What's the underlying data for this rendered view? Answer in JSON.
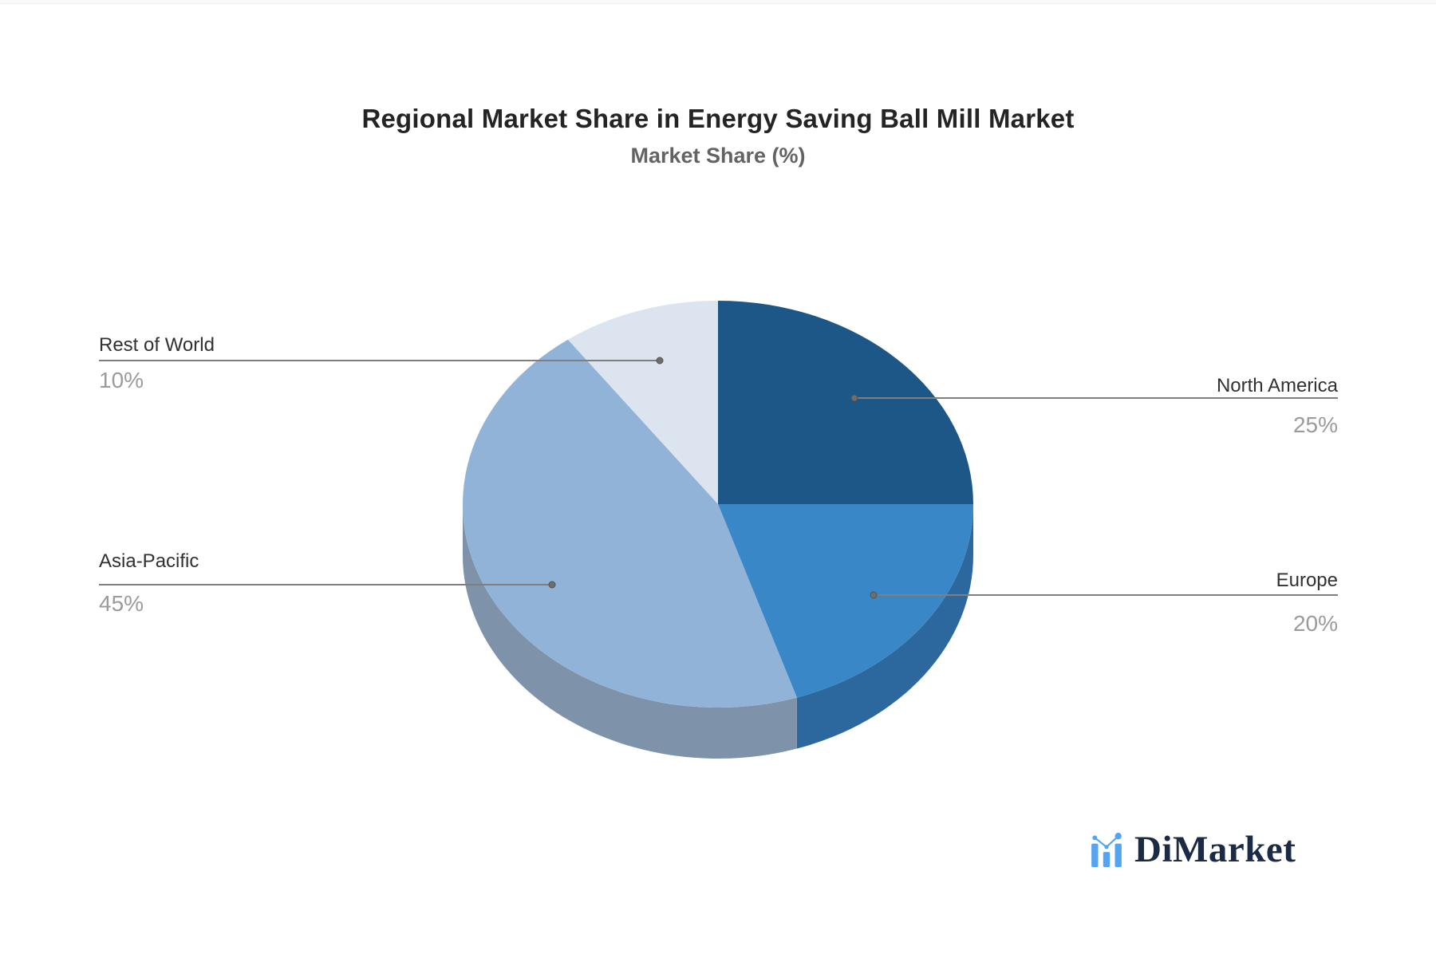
{
  "chart_data": {
    "type": "pie",
    "title": "Regional Market Share in Energy Saving Ball Mill Market",
    "subtitle": "Market Share (%)",
    "unit": "%",
    "style": "3d-pie",
    "legend_position": "none",
    "label_style": "callout-lines-with-percent",
    "start_angle_deg": 0,
    "direction": "clockwise",
    "slices": [
      {
        "name": "North America",
        "value": 25,
        "pct_label": "25%",
        "color": "#1d5788",
        "side_color": "#164268"
      },
      {
        "name": "Europe",
        "value": 20,
        "pct_label": "20%",
        "color": "#3a87c8",
        "side_color": "#2c689e"
      },
      {
        "name": "Asia-Pacific",
        "value": 45,
        "pct_label": "45%",
        "color": "#92b3d8",
        "side_color": "#7e93a9"
      },
      {
        "name": "Rest of World",
        "value": 10,
        "pct_label": "10%",
        "color": "#dce4ef",
        "side_color": "#b7c3d4"
      }
    ]
  },
  "logo": {
    "text": "DiMarket",
    "icon": "bar-chart-trend-icon",
    "icon_color": "#55a4f2",
    "text_color": "#1b2a45"
  },
  "colors": {
    "background": "#ffffff",
    "top_strip": "#f7f9fa",
    "connector_line": "#7f7f7f",
    "connector_dot": "#6e6e6e",
    "label_name": "#313131",
    "label_pct": "#9b9b9b",
    "title": "#242424",
    "subtitle": "#636363"
  }
}
